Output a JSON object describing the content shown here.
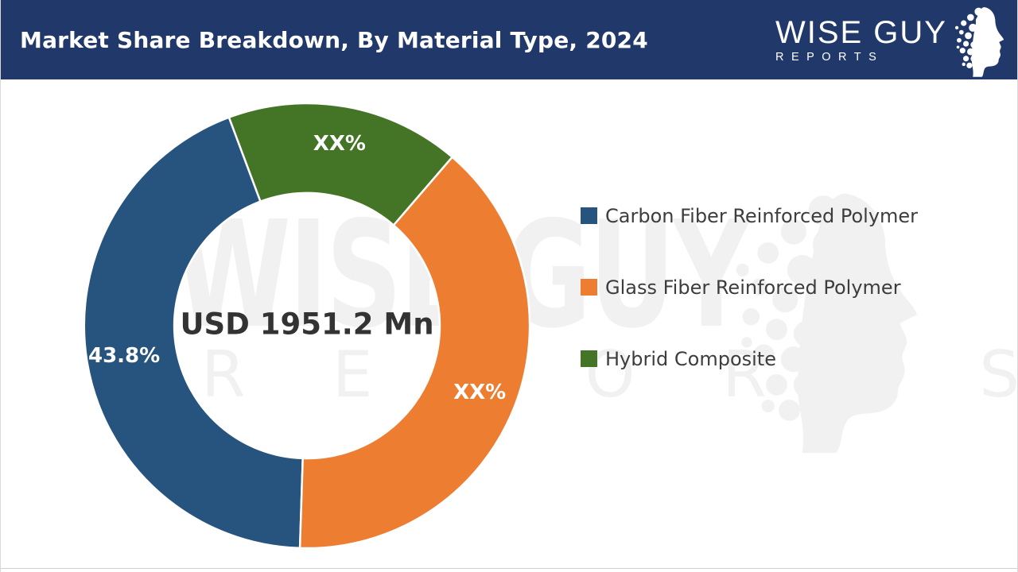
{
  "page": {
    "bg": "#ffffff",
    "border_color": "#d9d9d9"
  },
  "header": {
    "bg": "#21396a",
    "title": "Market Share Breakdown, By Material Type, 2024",
    "title_color": "#ffffff",
    "logo": {
      "line1": "WISE GUY",
      "line2": "REPORTS",
      "color": "#ffffff"
    }
  },
  "watermark": {
    "line1": "WISE GUY",
    "line2": "R E P O R T S",
    "color": "#f1f1f1"
  },
  "chart_data": {
    "type": "donut",
    "title": "Market Share Breakdown, By Material Type, 2024",
    "center_label": "USD 1951.2 Mn",
    "center_label_color": "#333333",
    "center": {
      "x": 385,
      "y": 410
    },
    "outer_radius": 280,
    "inner_radius": 167,
    "label_radius": 233,
    "start_angle_deg": 110.5,
    "direction": "ccw",
    "slice_border_color": "#ffffff",
    "slice_label_color": "#ffffff",
    "legend_position": "right",
    "series": [
      {
        "name": "Carbon Fiber Reinforced Polymer",
        "value_pct": 43.8,
        "slice_label": "43.8%",
        "color": "#26547e"
      },
      {
        "name": "Glass Fiber Reinforced Polymer",
        "value_pct": 39.2,
        "slice_label": "XX%",
        "color": "#ed7d31"
      },
      {
        "name": "Hybrid Composite",
        "value_pct": 17.0,
        "slice_label": "XX%",
        "color": "#447426"
      }
    ]
  },
  "legend": {
    "text_color": "#3d3d3d"
  }
}
